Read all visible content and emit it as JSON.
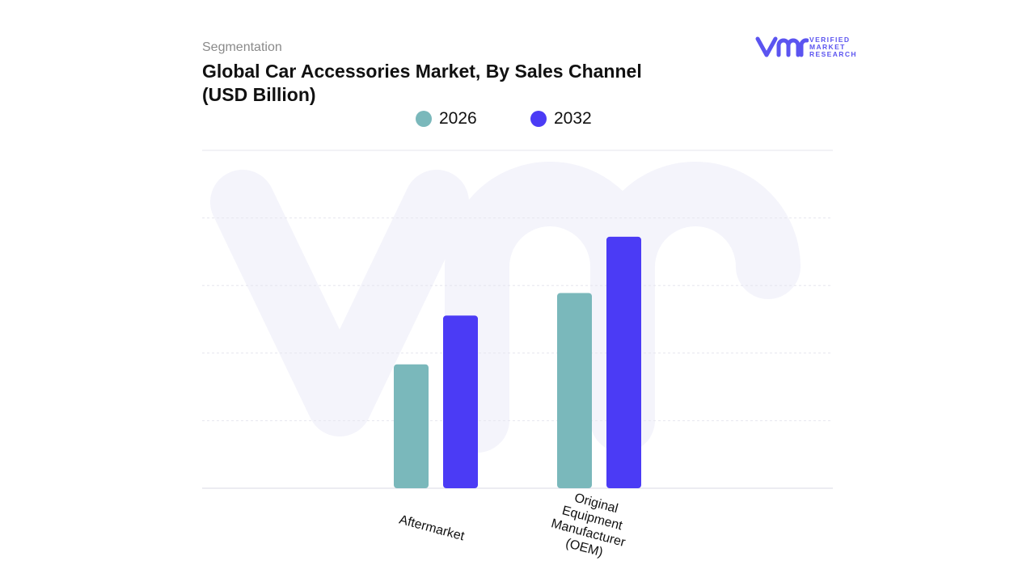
{
  "header": {
    "subtitle": "Segmentation",
    "title": "Global Car Accessories Market, By Sales Channel (USD Billion)"
  },
  "logo": {
    "text_lines": [
      "VERIFIED",
      "MARKET",
      "RESEARCH"
    ],
    "registered": "®",
    "color": "#5b54f0"
  },
  "colors": {
    "series_2026": "#7ab8bb",
    "series_2032": "#4b3bf5",
    "grid": "#e6e6ee",
    "watermark": "#f4f4fb"
  },
  "chart_data": {
    "type": "bar",
    "title": "Global Car Accessories Market, By Sales Channel (USD Billion)",
    "categories": [
      "Aftermarket",
      "Original Equipment Manufacturer (OEM)"
    ],
    "category_label_lines": [
      [
        "Aftermarket"
      ],
      [
        "Original",
        "Equipment",
        "Manufacturer",
        "(OEM)"
      ]
    ],
    "series": [
      {
        "name": "2026",
        "values": [
          33,
          52
        ]
      },
      {
        "name": "2032",
        "values": [
          46,
          67
        ]
      }
    ],
    "ylim": [
      0,
      90
    ],
    "grid": true,
    "legend": "top-center",
    "xlabel": "",
    "ylabel": ""
  }
}
